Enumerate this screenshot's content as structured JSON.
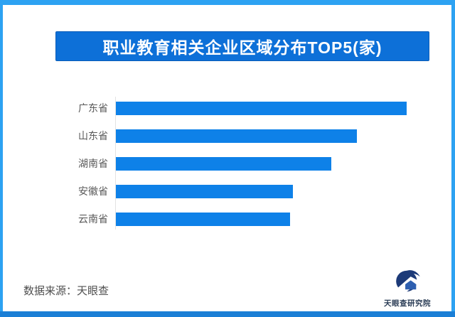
{
  "page": {
    "source_note": "数据来源：天眼查",
    "brand": {
      "logo_label": "天眼查研究院",
      "logo_icon": "tianyancha-eye-icon",
      "logo_color": "#1c3a78"
    },
    "frame_border_color": "#2da2f2",
    "frame_bottom_border_color": "#1b7fd6"
  },
  "banner": {
    "title": "职业教育相关企业区域分布TOP5(家)",
    "background": "#0d70d8",
    "text_color": "#ffffff"
  },
  "chart_data": {
    "type": "bar",
    "orientation": "horizontal",
    "title": "职业教育相关企业区域分布TOP5(家)",
    "categories": [
      "广东省",
      "山东省",
      "湖南省",
      "安徽省",
      "云南省"
    ],
    "values": [
      100,
      83,
      74,
      61,
      60
    ],
    "units": "relative percent of longest bar (no numeric value labels shown in image)",
    "value_labels_shown": false,
    "xlabel": "",
    "ylabel": "",
    "legend": "none",
    "grid": false,
    "axis_line": "single light-gray vertical baseline at left of bars",
    "bar_color": "#0e81e8",
    "label_color": "#595959",
    "source": "数据来源：天眼查"
  }
}
